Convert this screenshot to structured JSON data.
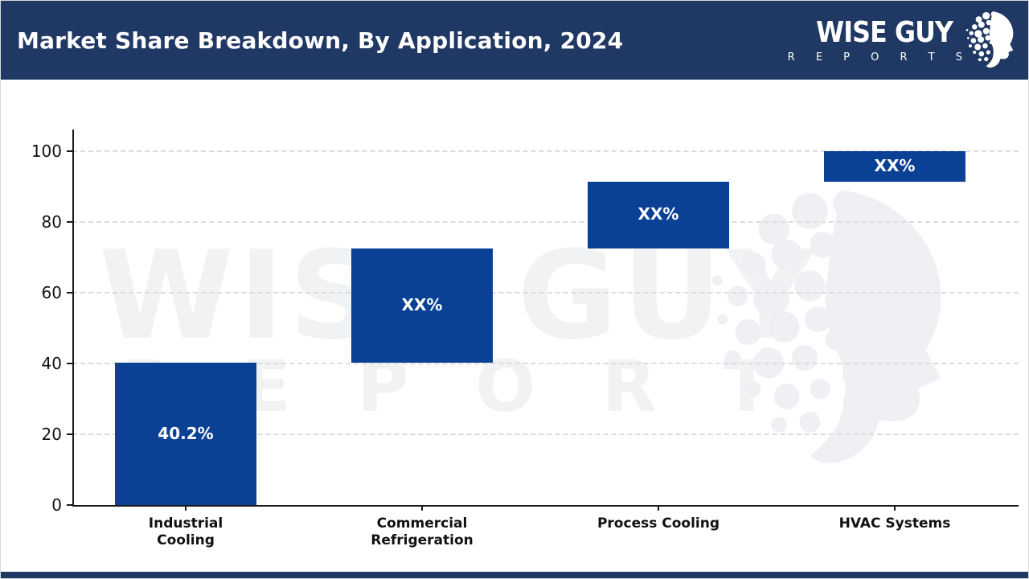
{
  "header": {
    "title": "Market Share Breakdown, By Application, 2024",
    "logo": {
      "primary": "WISE GUY",
      "secondary": "R E P O R T S"
    }
  },
  "watermark": {
    "line1": "WISE GUY",
    "line2": "R E P O R T S"
  },
  "chart_data": {
    "type": "bar",
    "subtype": "waterfall",
    "title": "Market Share Breakdown, By Application, 2024",
    "categories": [
      "Industrial Cooling",
      "Commercial Refrigeration",
      "Process Cooling",
      "HVAC Systems"
    ],
    "segments": [
      {
        "start": 0,
        "end": 40.2,
        "label": "40.2%"
      },
      {
        "start": 40.2,
        "end": 72.5,
        "label": "XX%"
      },
      {
        "start": 72.5,
        "end": 91.4,
        "label": "XX%"
      },
      {
        "start": 91.4,
        "end": 100,
        "label": "XX%"
      }
    ],
    "xlabel": "",
    "ylabel": "",
    "ylim": [
      0,
      100
    ],
    "yticks": [
      0,
      20,
      40,
      60,
      80,
      100
    ],
    "grid": "horizontal-dashed",
    "legend": "none"
  },
  "colors": {
    "header_bg": "#203864",
    "footer_bg": "#203864",
    "bar": "#0b4194",
    "bar_label": "#ffffff",
    "grid": "#dcdcdc",
    "axis": "#1a1a1a",
    "watermark": "#f1f2f4"
  }
}
